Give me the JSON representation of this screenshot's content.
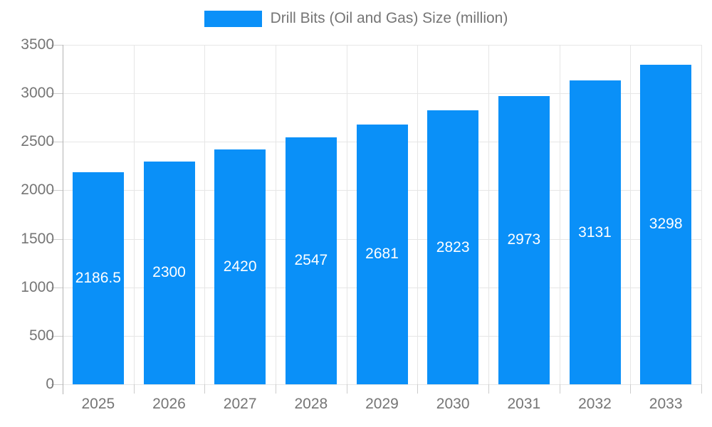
{
  "legend": {
    "label": "Drill Bits (Oil and Gas) Size (million)"
  },
  "chart_data": {
    "type": "bar",
    "categories": [
      "2025",
      "2026",
      "2027",
      "2028",
      "2029",
      "2030",
      "2031",
      "2032",
      "2033"
    ],
    "series": [
      {
        "name": "Drill Bits (Oil and Gas) Size (million)",
        "values": [
          2186.5,
          2300,
          2420,
          2547,
          2681,
          2823,
          2973,
          3131,
          3298
        ]
      }
    ],
    "bar_labels": [
      "2186.5",
      "2300",
      "2420",
      "2547",
      "2681",
      "2823",
      "2973",
      "3131",
      "3298"
    ],
    "title": "",
    "xlabel": "",
    "ylabel": "",
    "ylim": [
      0,
      3500
    ],
    "ytick_step": 500,
    "grid": true,
    "legend_position": "top-center"
  },
  "colors": {
    "bar": "#0a90f8",
    "bar_value_text": "#ffffff",
    "grid_line": "#e6e6e6",
    "axis_line": "#b3b3b3",
    "tick_mark": "#cccccc",
    "label_text": "#757575",
    "background": "#ffffff"
  }
}
